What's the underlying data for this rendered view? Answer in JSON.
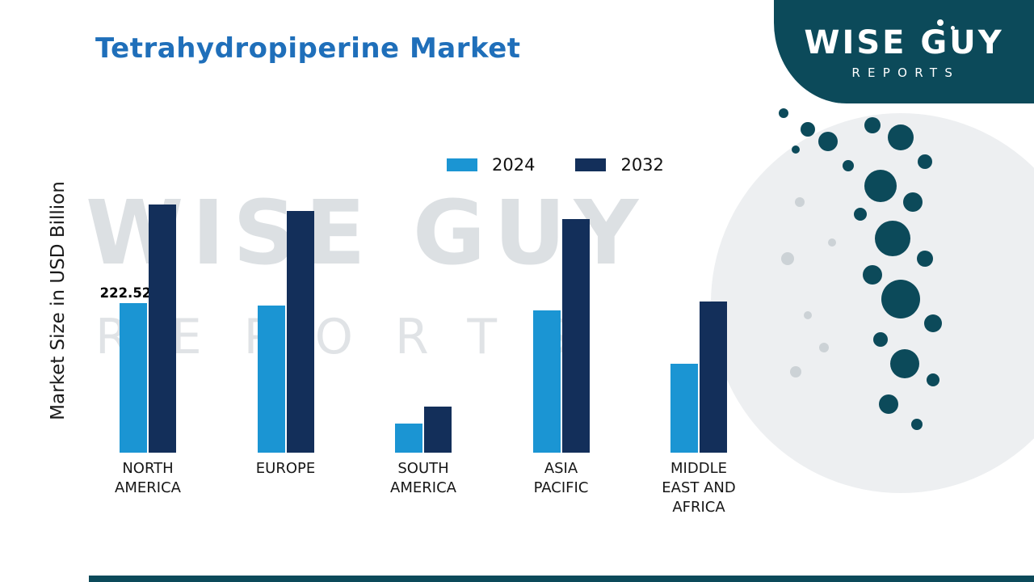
{
  "page": {
    "title": "Tetrahydropiperine Market",
    "title_color": "#1f6fba",
    "accent_teal": "#0c4a5a"
  },
  "logo": {
    "line1": "WISE GUY",
    "line2": "REPORTS"
  },
  "watermark": {
    "line1": "WISE GUY",
    "line2": "REPORTS"
  },
  "chart_data": {
    "type": "bar",
    "title": "Tetrahydropiperine Market",
    "xlabel": "",
    "ylabel": "Market Size in USD Billion",
    "categories": [
      "NORTH AMERICA",
      "EUROPE",
      "SOUTH AMERICA",
      "ASIA PACIFIC",
      "MIDDLE EAST AND AFRICA"
    ],
    "series": [
      {
        "name": "2024",
        "color": "#1b95d3",
        "values": [
          222.52,
          219,
          43,
          212,
          132
        ]
      },
      {
        "name": "2032",
        "color": "#132f5a",
        "values": [
          370,
          360,
          69,
          348,
          225
        ]
      }
    ],
    "ylim": [
      0,
      400
    ],
    "grid": false,
    "legend_position": "top",
    "annotations": [
      {
        "series": "2024",
        "category": "NORTH AMERICA",
        "text": "222.52"
      }
    ]
  }
}
